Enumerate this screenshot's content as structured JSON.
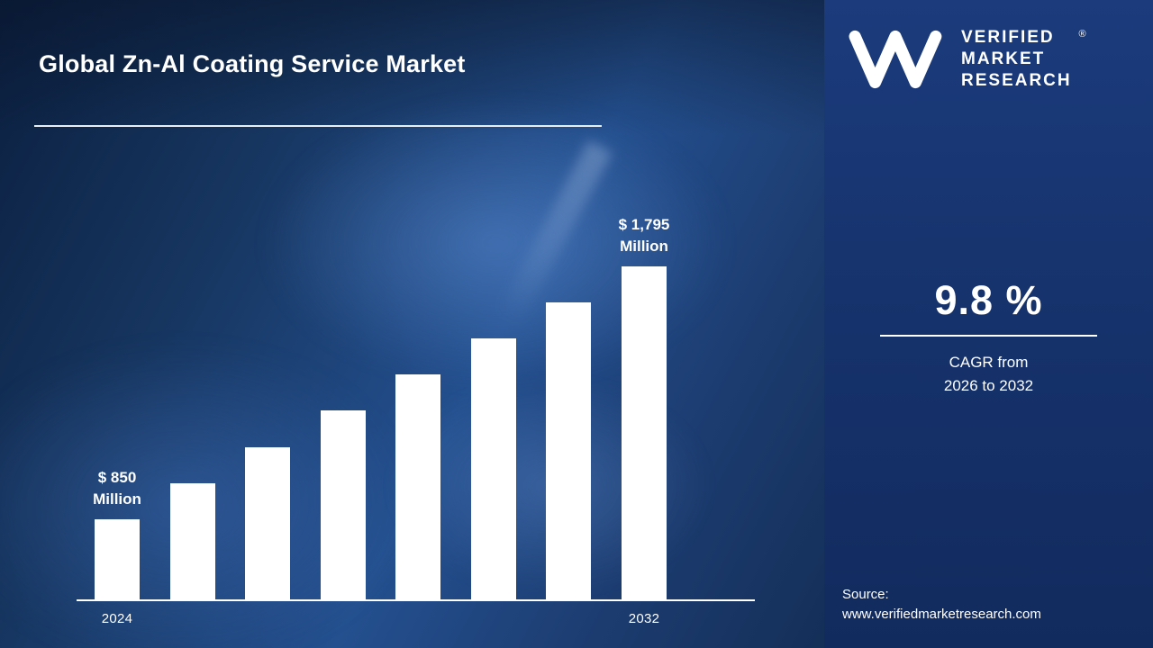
{
  "title": "Global Zn-Al Coating Service Market",
  "brand": {
    "name_lines": [
      "VERIFIED",
      "MARKET",
      "RESEARCH"
    ],
    "registered_mark": "®"
  },
  "stats": {
    "cagr_value": "9.8 %",
    "cagr_caption_line1": "CAGR from",
    "cagr_caption_line2": "2026 to 2032"
  },
  "source": {
    "label": "Source:",
    "url": "www.verifiedmarketresearch.com"
  },
  "chart_data": {
    "type": "bar",
    "title": "Global Zn-Al Coating Service Market",
    "unit": "USD Million",
    "categories": [
      "2024",
      "",
      "",
      "",
      "",
      "",
      "",
      "2032"
    ],
    "values": [
      850,
      985,
      1120,
      1255,
      1390,
      1525,
      1660,
      1795
    ],
    "first_value_label": "$ 850 Million",
    "last_value_label": "$ 1,795 Million",
    "bar_color": "#ffffff",
    "axis_color": "#ffffff",
    "grid": false,
    "legend": false,
    "annotations": [
      {
        "bar_index": 0,
        "line1": "$ 850",
        "line2": "Million"
      },
      {
        "bar_index": 7,
        "line1": "$ 1,795",
        "line2": "Million"
      }
    ],
    "value_axis_mapping": {
      "value_min": 550,
      "value_max": 1795,
      "pixel_max": 370
    }
  }
}
